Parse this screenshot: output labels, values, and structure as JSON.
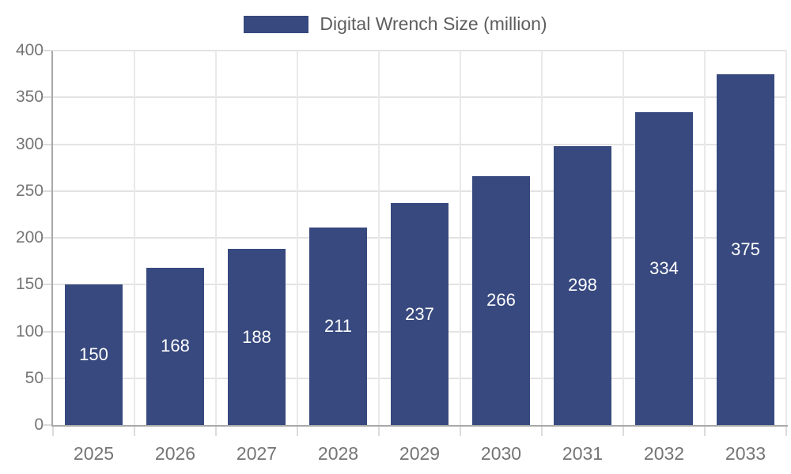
{
  "legend": {
    "label": "Digital Wrench Size (million)"
  },
  "chart_data": {
    "type": "bar",
    "title": "Digital Wrench Size (million)",
    "series_name": "Digital Wrench Size (million)",
    "categories": [
      "2025",
      "2026",
      "2027",
      "2028",
      "2029",
      "2030",
      "2031",
      "2032",
      "2033"
    ],
    "values": [
      150,
      168,
      188,
      211,
      237,
      266,
      298,
      334,
      375
    ],
    "xlabel": "",
    "ylabel": "",
    "ylim": [
      0,
      400
    ],
    "ytick_step": 50,
    "grid": true,
    "legend_position": "top-center",
    "bar_color": "#38497f",
    "value_label_color": "#ffffff",
    "axis_label_color": "#757575",
    "legend_text_color": "#5e5e5e",
    "gridline_color": "#e3e3e3",
    "axis_line_color": "#a8a8a8",
    "background_color": "#ffffff"
  }
}
